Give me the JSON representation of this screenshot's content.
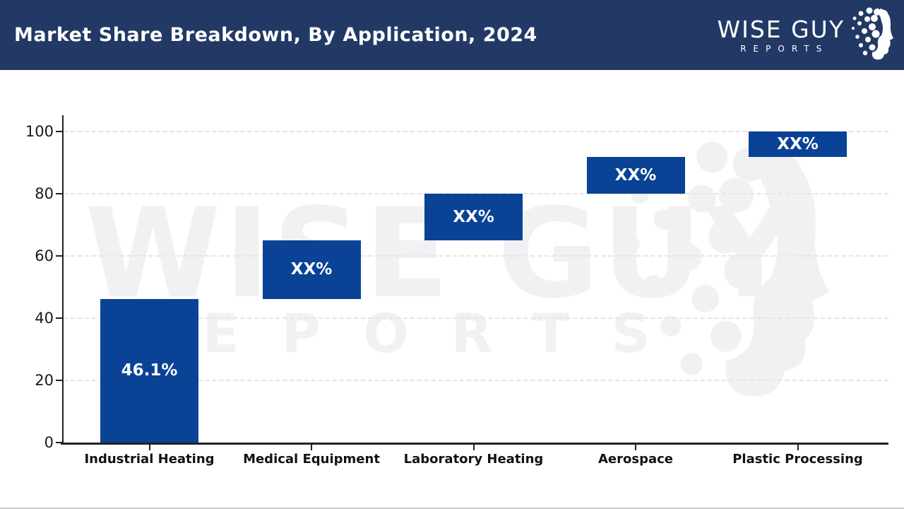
{
  "header": {
    "title": "Market Share Breakdown, By Application, 2024"
  },
  "logo": {
    "line1": "WISE GUY",
    "line2": "REPORTS"
  },
  "watermark": {
    "line1": "WISE GUY",
    "line2": "REPORTS"
  },
  "colors": {
    "header_bg": "#223965",
    "bar": "#0a4395",
    "bar_label": "#ffffff",
    "axis": "#222222",
    "grid": "#e4e4e4",
    "watermark": "#f1f1f3",
    "bottom_rule": "#cccccc"
  },
  "chart_data": {
    "type": "bar",
    "subtype": "waterfall",
    "title": "Market Share Breakdown, By Application, 2024",
    "xlabel": "",
    "ylabel": "",
    "categories": [
      "Industrial Heating",
      "Medical Equipment",
      "Laboratory Heating",
      "Aerospace",
      "Plastic Processing"
    ],
    "bars": [
      {
        "category": "Industrial Heating",
        "start": 0,
        "end": 46.1,
        "label": "46.1%"
      },
      {
        "category": "Medical Equipment",
        "start": 46.1,
        "end": 65,
        "label": "XX%"
      },
      {
        "category": "Laboratory Heating",
        "start": 65,
        "end": 80,
        "label": "XX%"
      },
      {
        "category": "Aerospace",
        "start": 80,
        "end": 91.7,
        "label": "XX%"
      },
      {
        "category": "Plastic Processing",
        "start": 91.7,
        "end": 100,
        "label": "XX%"
      }
    ],
    "yticks": [
      0,
      20,
      40,
      60,
      80,
      100
    ],
    "ylim": [
      0,
      105
    ],
    "grid": "horizontal-dashed",
    "legend": "none"
  }
}
